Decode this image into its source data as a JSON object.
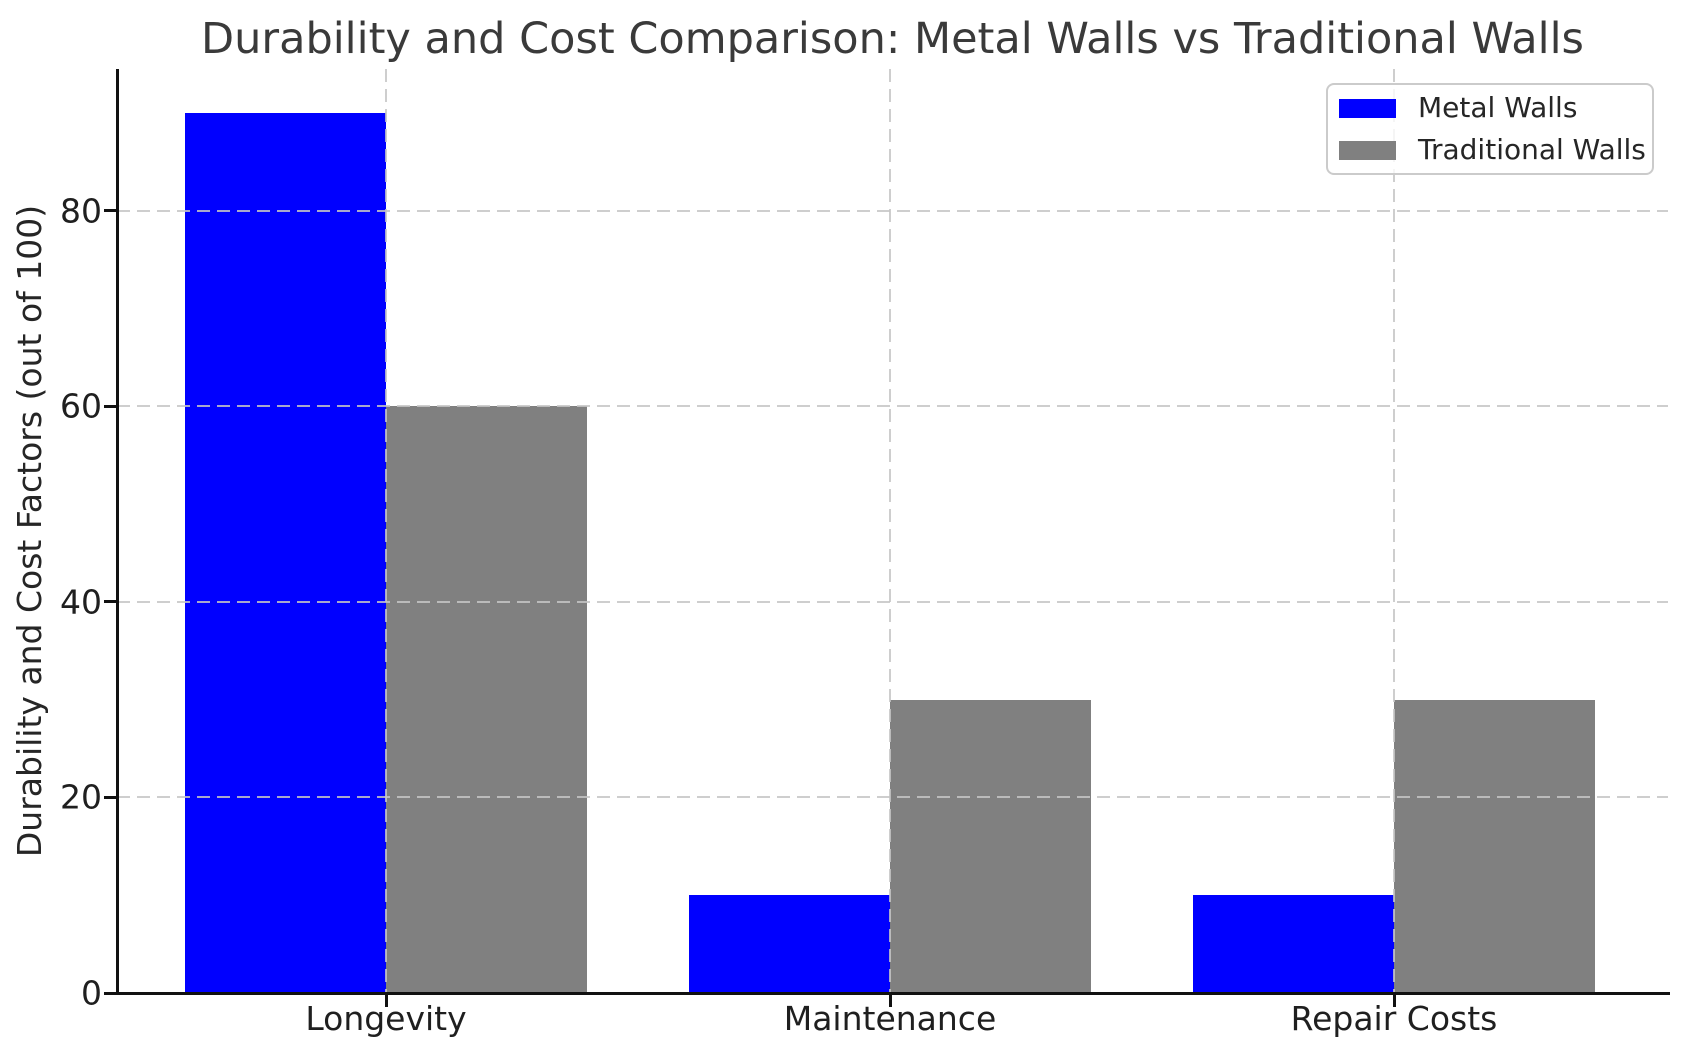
{
  "chart_data": {
    "type": "bar",
    "title": "Durability and Cost Comparison: Metal Walls vs Traditional Walls",
    "xlabel": "",
    "ylabel": "Durability and Cost Factors (out of 100)",
    "categories": [
      "Longevity",
      "Maintenance",
      "Repair Costs"
    ],
    "series": [
      {
        "name": "Metal Walls",
        "color": "#0000ff",
        "values": [
          90,
          10,
          10
        ]
      },
      {
        "name": "Traditional Walls",
        "color": "#808080",
        "values": [
          60,
          30,
          30
        ]
      }
    ],
    "yticks": [
      0,
      20,
      40,
      60,
      80
    ],
    "ylim": [
      0,
      94.5
    ],
    "grid": true,
    "grid_style": "dashed",
    "grid_color": "#c5c5c5",
    "legend_position": "upper right",
    "background_color": "#ffffff",
    "spine_color": "#111111",
    "bar_width_fraction": 0.4
  }
}
